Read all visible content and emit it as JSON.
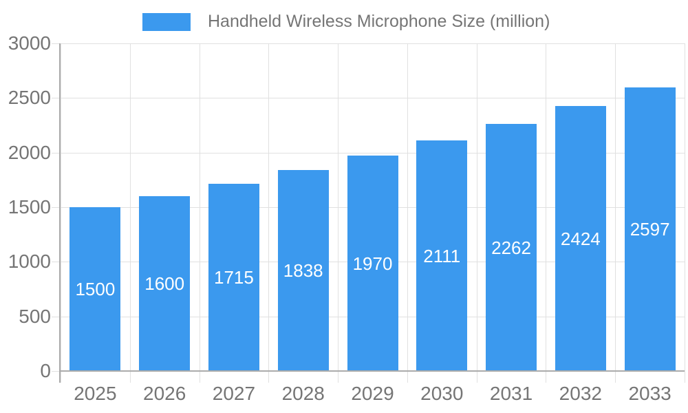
{
  "colors": {
    "bar": "#3B99EE",
    "grid": "#e0e0e0",
    "axis": "#ababab",
    "axis_text": "#757575",
    "legend_text": "#757575",
    "bar_label_text": "#ffffff",
    "background": "#ffffff"
  },
  "legend": {
    "label": "Handheld Wireless Microphone Size (million)"
  },
  "chart_data": {
    "type": "bar",
    "title": "Handheld Wireless Microphone Size (million)",
    "categories": [
      "2025",
      "2026",
      "2027",
      "2028",
      "2029",
      "2030",
      "2031",
      "2032",
      "2033"
    ],
    "values": [
      1500,
      1600,
      1715,
      1838,
      1970,
      2111,
      2262,
      2424,
      2597
    ],
    "xlabel": "",
    "ylabel": "",
    "ylim": [
      0,
      3000
    ],
    "yticks": [
      0,
      500,
      1000,
      1500,
      2000,
      2500,
      3000
    ],
    "grid": true,
    "legend_position": "top",
    "bar_value_labels_inside": true
  }
}
